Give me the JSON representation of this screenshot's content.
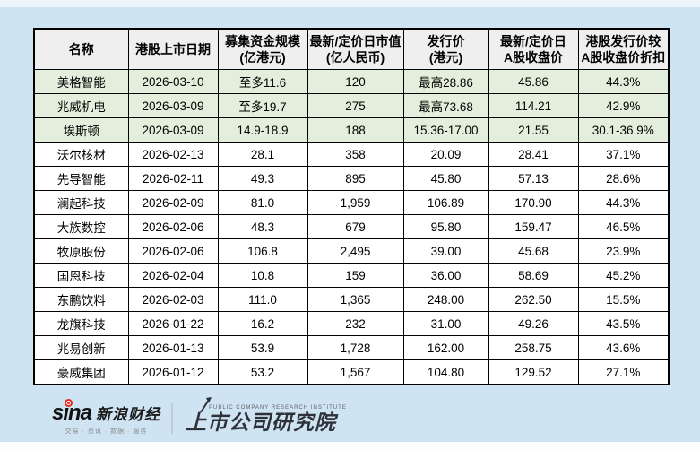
{
  "page": {
    "background": "#cfe4f2"
  },
  "chart_data": {
    "type": "table",
    "title": "",
    "columns": [
      "名称",
      "港股上市日期",
      "募集资金规模\n(亿港元)",
      "最新/定价日市值\n(亿人民币)",
      "发行价\n(港元)",
      "最新/定价日\nA股收盘价",
      "港股发行价较\nA股收盘价折扣"
    ],
    "rows": [
      [
        "美格智能",
        "2026-03-10",
        "至多11.6",
        "120",
        "最高28.86",
        "45.86",
        "44.3%"
      ],
      [
        "兆威机电",
        "2026-03-09",
        "至多19.7",
        "275",
        "最高73.68",
        "114.21",
        "42.9%"
      ],
      [
        "埃斯顿",
        "2026-03-09",
        "14.9-18.9",
        "188",
        "15.36-17.00",
        "21.55",
        "30.1-36.9%"
      ],
      [
        "沃尔核材",
        "2026-02-13",
        "28.1",
        "358",
        "20.09",
        "28.41",
        "37.1%"
      ],
      [
        "先导智能",
        "2026-02-11",
        "49.3",
        "895",
        "45.80",
        "57.13",
        "28.6%"
      ],
      [
        "澜起科技",
        "2026-02-09",
        "81.0",
        "1,959",
        "106.89",
        "170.90",
        "44.3%"
      ],
      [
        "大族数控",
        "2026-02-06",
        "48.3",
        "679",
        "95.80",
        "159.47",
        "46.5%"
      ],
      [
        "牧原股份",
        "2026-02-06",
        "106.8",
        "2,495",
        "39.00",
        "45.68",
        "23.9%"
      ],
      [
        "国恩科技",
        "2026-02-04",
        "10.8",
        "159",
        "36.00",
        "58.69",
        "45.2%"
      ],
      [
        "东鹏饮料",
        "2026-02-03",
        "111.0",
        "1,365",
        "248.00",
        "262.50",
        "15.5%"
      ],
      [
        "龙旗科技",
        "2026-01-22",
        "16.2",
        "232",
        "31.00",
        "49.26",
        "43.5%"
      ],
      [
        "兆易创新",
        "2026-01-13",
        "53.9",
        "1,728",
        "162.00",
        "258.75",
        "43.6%"
      ],
      [
        "豪威集团",
        "2026-01-12",
        "53.2",
        "1,567",
        "104.80",
        "129.52",
        "27.1%"
      ]
    ],
    "highlighted_row_count": 3,
    "highlight_color": "#e3efdc",
    "header_background": "#efefef",
    "layout": {
      "grid": "full-borders",
      "legend_position": "none"
    }
  },
  "footer": {
    "sina_wordmark": "sina",
    "sina_brand": "新浪财经",
    "sina_tagline": "交易 · 资讯 · 数据 · 服务",
    "institute_en": "PUBLIC COMPANY RESEARCH INSTITUTE",
    "institute_name": "上市公司研究院",
    "accent_red": "#e12d23"
  }
}
